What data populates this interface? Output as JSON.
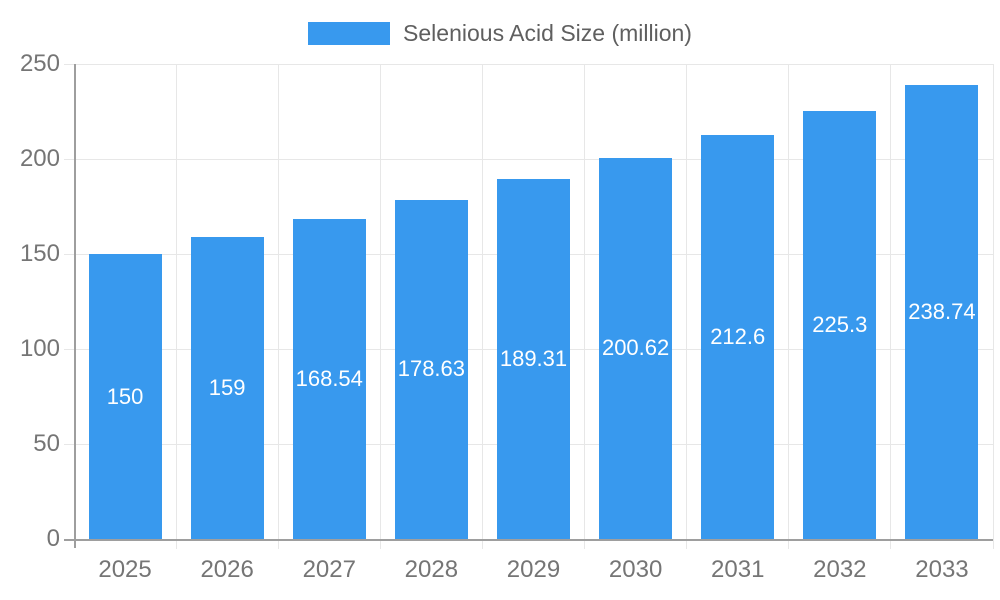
{
  "legend": {
    "label": "Selenious Acid Size (million)"
  },
  "chart_data": {
    "type": "bar",
    "title": "Selenious Acid Size (million)",
    "categories": [
      "2025",
      "2026",
      "2027",
      "2028",
      "2029",
      "2030",
      "2031",
      "2032",
      "2033"
    ],
    "series": [
      {
        "name": "Selenious Acid Size (million)",
        "values": [
          150,
          159,
          168.54,
          178.63,
          189.31,
          200.62,
          212.6,
          225.3,
          238.74
        ],
        "value_labels": [
          "150",
          "159",
          "168.54",
          "178.63",
          "189.31",
          "200.62",
          "212.6",
          "225.3",
          "238.74"
        ]
      }
    ],
    "xlabel": "",
    "ylabel": "",
    "ylim": [
      0,
      250
    ],
    "yticks": [
      0,
      50,
      100,
      150,
      200,
      250
    ],
    "grid": true,
    "legend_position": "top",
    "value_labels_position": "inside-center",
    "colors": {
      "bar": "#3899ee",
      "value_label": "#ffffff",
      "axis_line": "#9e9e9e",
      "grid_line": "#e7e7e7",
      "tick_label": "#757575",
      "legend_text": "#5f5f5f"
    }
  }
}
